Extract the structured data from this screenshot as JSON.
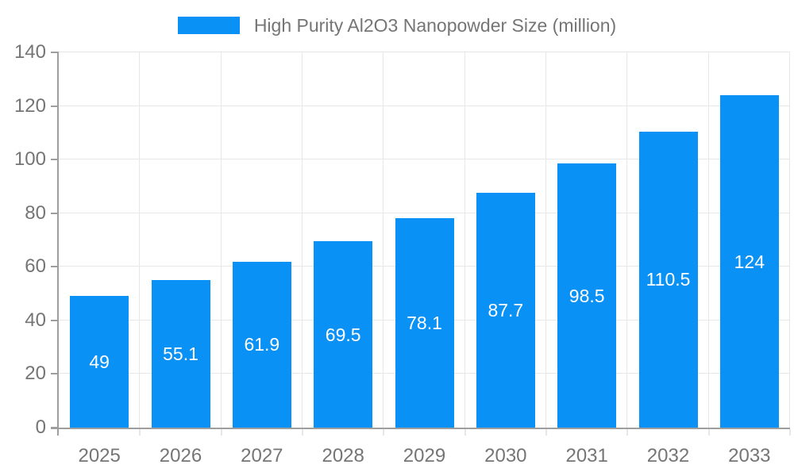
{
  "chart_data": {
    "type": "bar",
    "title": "High Purity Al2O3 Nanopowder Size (million)",
    "categories": [
      "2025",
      "2026",
      "2027",
      "2028",
      "2029",
      "2030",
      "2031",
      "2032",
      "2033"
    ],
    "series": [
      {
        "name": "High Purity Al2O3 Nanopowder Size (million)",
        "values": [
          49,
          55.1,
          61.9,
          69.5,
          78.1,
          87.7,
          98.5,
          110.5,
          124
        ]
      }
    ],
    "value_labels": [
      "49",
      "55.1",
      "61.9",
      "69.5",
      "78.1",
      "87.7",
      "98.5",
      "110.5",
      "124"
    ],
    "xlabel": "",
    "ylabel": "",
    "ylim": [
      0,
      140
    ],
    "ytick_step": 20,
    "yticks": [
      0,
      20,
      40,
      60,
      80,
      100,
      120,
      140
    ],
    "grid": true,
    "legend_position": "top",
    "value_labels_inside_bars": true,
    "colors": {
      "bar": "#0a91f5",
      "grid": "#e7e7e7",
      "axis": "#9e9e9e",
      "tick_label": "#757575",
      "legend_label": "#757575",
      "value_label": "#ffffff",
      "background": "#ffffff"
    }
  }
}
